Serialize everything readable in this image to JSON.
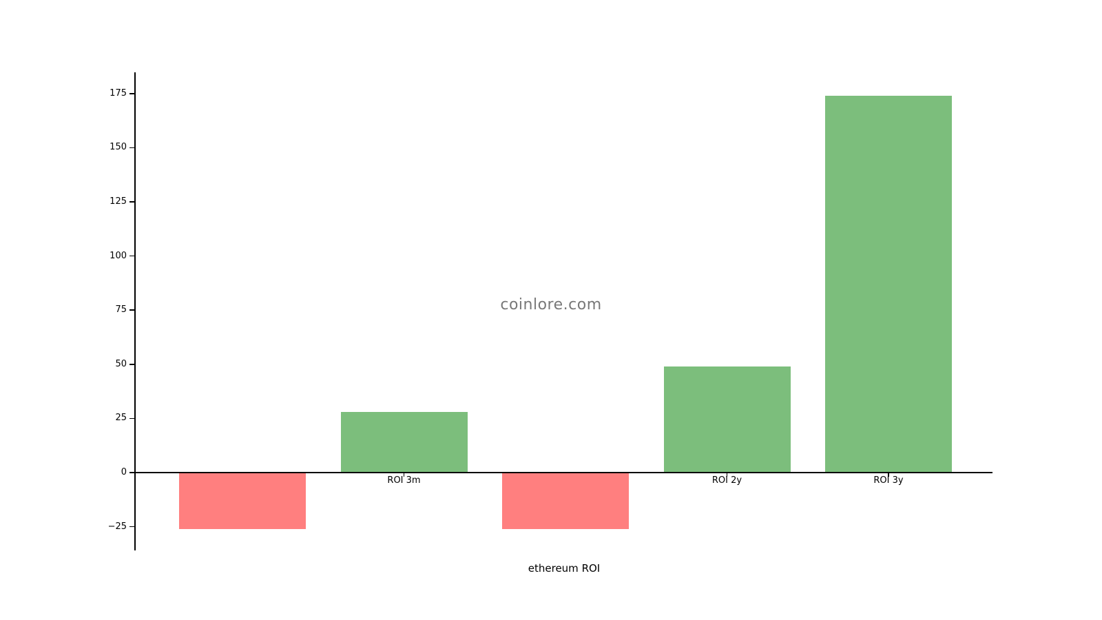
{
  "watermark": {
    "text": "coinlore.com",
    "color": "#787878"
  },
  "colors": {
    "positive_bar": "#7cbe7c",
    "negative_bar": "#ff7f7f",
    "axis": "#000000",
    "tick_text": "#000000"
  },
  "chart_data": {
    "type": "bar",
    "title": "",
    "xlabel": "ethereum ROI",
    "ylabel": "",
    "categories": [
      "",
      "ROI 3m",
      "",
      "ROI 2y",
      "ROI 3y"
    ],
    "values": [
      -26,
      28,
      -26,
      49,
      174
    ],
    "label_occluded_by_bar": [
      true,
      false,
      true,
      false,
      false
    ],
    "yticks": [
      -25,
      0,
      25,
      50,
      75,
      100,
      125,
      150,
      175
    ],
    "ytick_labels": [
      "−25",
      "0",
      "25",
      "50",
      "75",
      "100",
      "125",
      "150",
      "175"
    ],
    "ylim": [
      -36,
      185
    ],
    "grid": false,
    "legend": null,
    "bar_color_rule": "positive values green, negative values red"
  }
}
